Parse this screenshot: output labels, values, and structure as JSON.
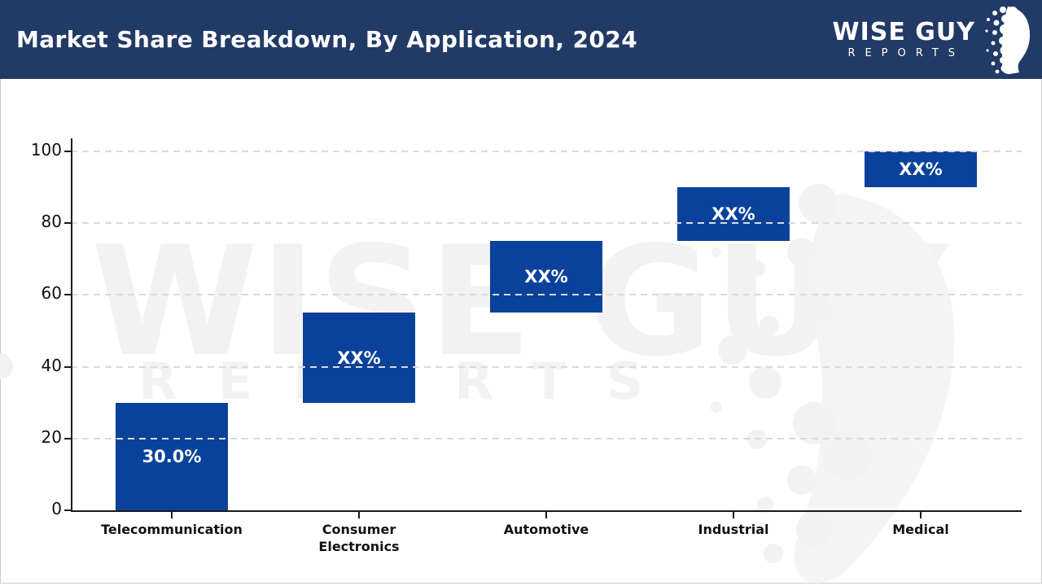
{
  "header": {
    "title": "Market Share Breakdown, By Application, 2024",
    "logo_line1": "WISE GUY",
    "logo_line2": "REPORTS"
  },
  "watermark": {
    "line1": "WISE GUY",
    "line2": "REPORTS"
  },
  "chart_data": {
    "type": "bar",
    "variant": "waterfall",
    "title": "Market Share Breakdown, By Application, 2024",
    "unit": "percent",
    "categories": [
      "Telecommunication",
      "Consumer\nElectronics",
      "Automotive",
      "Industrial",
      "Medical"
    ],
    "segments": [
      {
        "category": "Telecommunication",
        "start": 0,
        "end": 30,
        "label": "30.0%"
      },
      {
        "category": "Consumer Electronics",
        "start": 30,
        "end": 55,
        "label": "XX%"
      },
      {
        "category": "Automotive",
        "start": 55,
        "end": 75,
        "label": "XX%"
      },
      {
        "category": "Industrial",
        "start": 75,
        "end": 90,
        "label": "XX%"
      },
      {
        "category": "Medical",
        "start": 90,
        "end": 100,
        "label": "XX%"
      }
    ],
    "yticks": [
      0,
      20,
      40,
      60,
      80,
      100
    ],
    "ylim": [
      0,
      100
    ],
    "grid": "horizontal-dashed",
    "legend": "none",
    "colors": {
      "bar": "#0a429b",
      "header_bg": "#223a66",
      "grid": "#dadada",
      "axis": "#1a1a1a",
      "bar_label": "#ffffff",
      "title_text": "#ffffff"
    }
  }
}
